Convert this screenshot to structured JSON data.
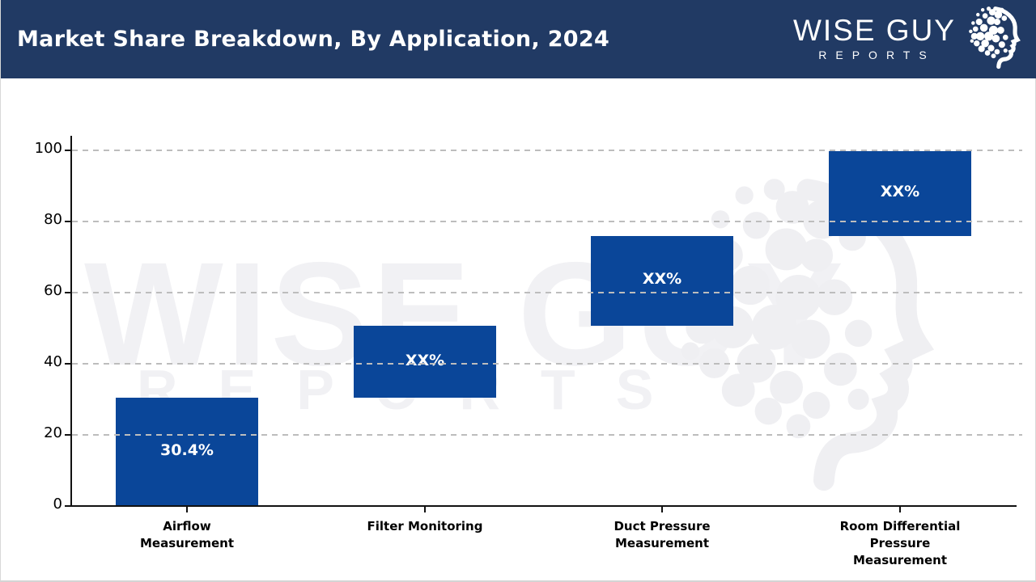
{
  "header": {
    "title": "Market Share Breakdown, By Application, 2024",
    "bg_color": "#213a64",
    "logo": {
      "wordmark": "WISE GUY",
      "subtext": "REPORTS"
    }
  },
  "watermark": {
    "line1": "WISE GUY",
    "line2": "REPORTS"
  },
  "chart_data": {
    "type": "bar",
    "subtype": "waterfall",
    "title": "Market Share Breakdown, By Application, 2024",
    "xlabel": "",
    "ylabel": "",
    "ylim": [
      0,
      104
    ],
    "yticks": [
      0,
      20,
      40,
      60,
      80,
      100
    ],
    "grid": true,
    "grid_style": "dashed",
    "bar_color": "#0a4699",
    "value_label_color": "#ffffff",
    "categories": [
      {
        "name": "Airflow Measurement",
        "lines": [
          "Airflow",
          "Measurement"
        ]
      },
      {
        "name": "Filter Monitoring",
        "lines": [
          "Filter Monitoring"
        ]
      },
      {
        "name": "Duct Pressure Measurement",
        "lines": [
          "Duct Pressure",
          "Measurement"
        ]
      },
      {
        "name": "Room Differential Pressure Measurement",
        "lines": [
          "Room Differential",
          "Pressure",
          "Measurement"
        ]
      }
    ],
    "segments": [
      {
        "start": 0,
        "end": 30.4,
        "value": 30.4,
        "label": "30.4%"
      },
      {
        "start": 30.4,
        "end": 50.7,
        "value": 20.3,
        "label": "XX%"
      },
      {
        "start": 50.7,
        "end": 75.9,
        "value": 25.2,
        "label": "XX%"
      },
      {
        "start": 75.9,
        "end": 99.8,
        "value": 23.9,
        "label": "XX%"
      }
    ]
  }
}
